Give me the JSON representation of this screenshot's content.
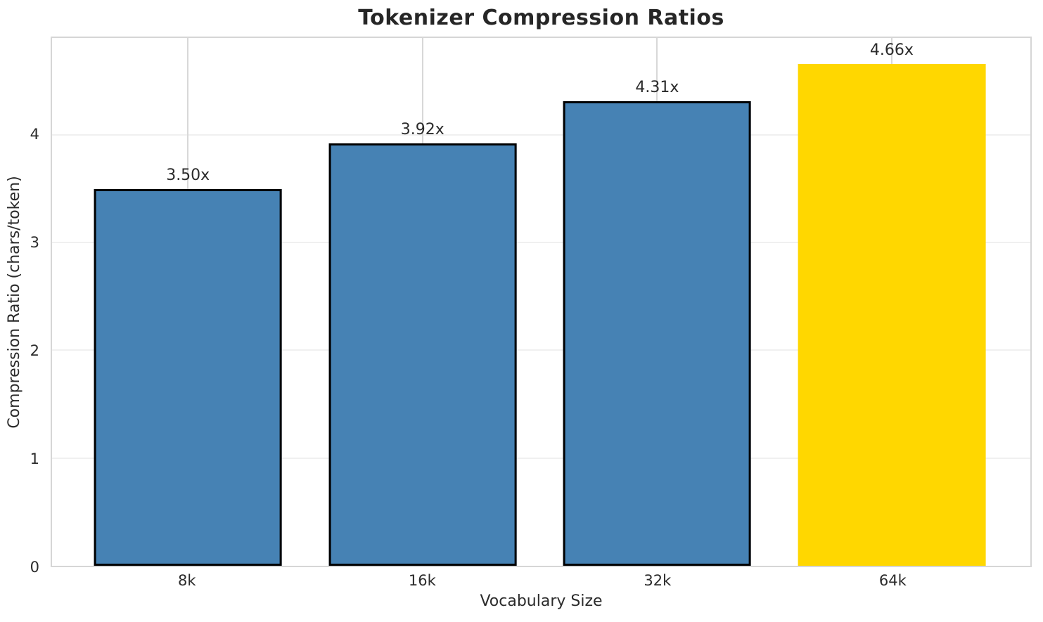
{
  "chart_data": {
    "type": "bar",
    "title": "Tokenizer Compression Ratios",
    "xlabel": "Vocabulary Size",
    "ylabel": "Compression Ratio (chars/token)",
    "categories": [
      "8k",
      "16k",
      "32k",
      "64k"
    ],
    "values": [
      3.5,
      3.92,
      4.31,
      4.66
    ],
    "bar_labels": [
      "3.50x",
      "3.92x",
      "4.31x",
      "4.66x"
    ],
    "bar_colors": [
      "#4682B4",
      "#4682B4",
      "#4682B4",
      "#FFD700"
    ],
    "bar_edge_colors": [
      "#000000",
      "#000000",
      "#000000",
      "none"
    ],
    "yticks": [
      "0",
      "1",
      "2",
      "3",
      "4"
    ],
    "ytick_values": [
      0,
      1,
      2,
      3,
      4
    ],
    "ylim": [
      0,
      4.9
    ],
    "grid": "on",
    "legend": "none",
    "colors": {
      "series": "#4682B4",
      "highlight": "#FFD700",
      "bar_edge": "#000000",
      "spine": "#d6d6d6",
      "grid_vertical": "#d8d8d8",
      "grid_horizontal": "#f0f0f0",
      "text": "#2b2b2b",
      "title_text": "#262626",
      "background": "#ffffff"
    }
  }
}
